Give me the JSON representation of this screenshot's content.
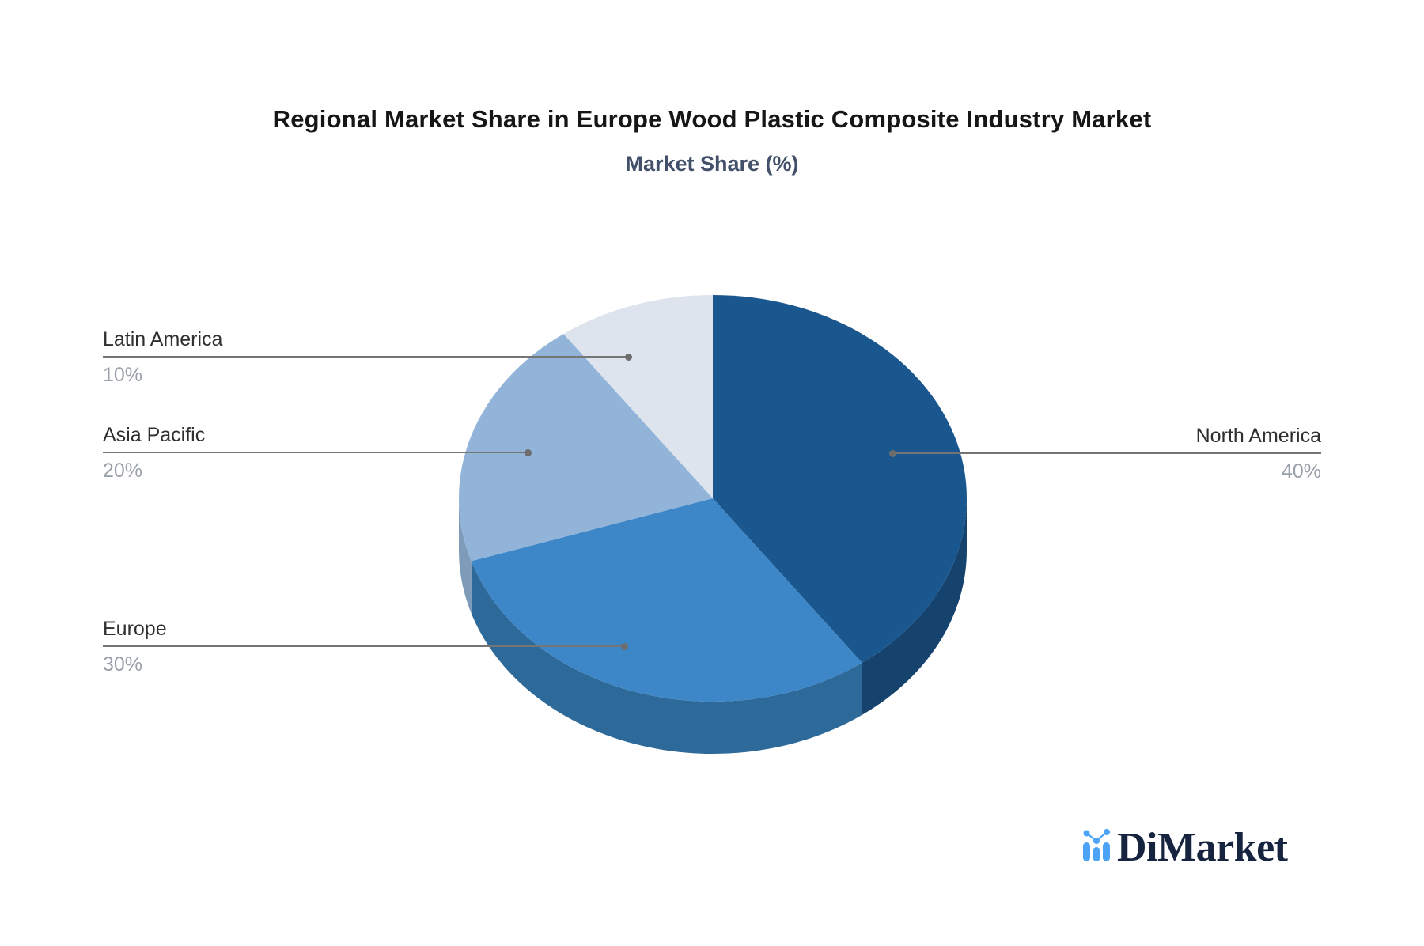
{
  "page": {
    "background": "#ffffff"
  },
  "chart_data": {
    "type": "pie",
    "title": "Regional Market Share in Europe Wood Plastic Composite Industry Market",
    "subtitle": "Market Share (%)",
    "value_suffix": "%",
    "start_angle": "12-o-clock",
    "direction": "clockwise",
    "style": "3d-extruded",
    "legend": "none",
    "slices": [
      {
        "label": "North America",
        "value": 40,
        "color": "#1a578e",
        "side_color": "#16436e"
      },
      {
        "label": "Europe",
        "value": 30,
        "color": "#3d87c9",
        "side_color": "#2e6a99"
      },
      {
        "label": "Asia Pacific",
        "value": 20,
        "color": "#92b4d8",
        "side_color": "#7e9cba"
      },
      {
        "label": "Latin America",
        "value": 10,
        "color": "#dee4ed",
        "side_color": null
      }
    ],
    "connector_color": "#757575",
    "label_color": "#2f2f2f",
    "value_color": "#9aa1ab"
  },
  "branding": {
    "logo_text": "DiMarket",
    "logo_text_color": "#172440",
    "logo_icon": "bar-line-chart-icon",
    "logo_icon_color": "#4da3f5"
  }
}
